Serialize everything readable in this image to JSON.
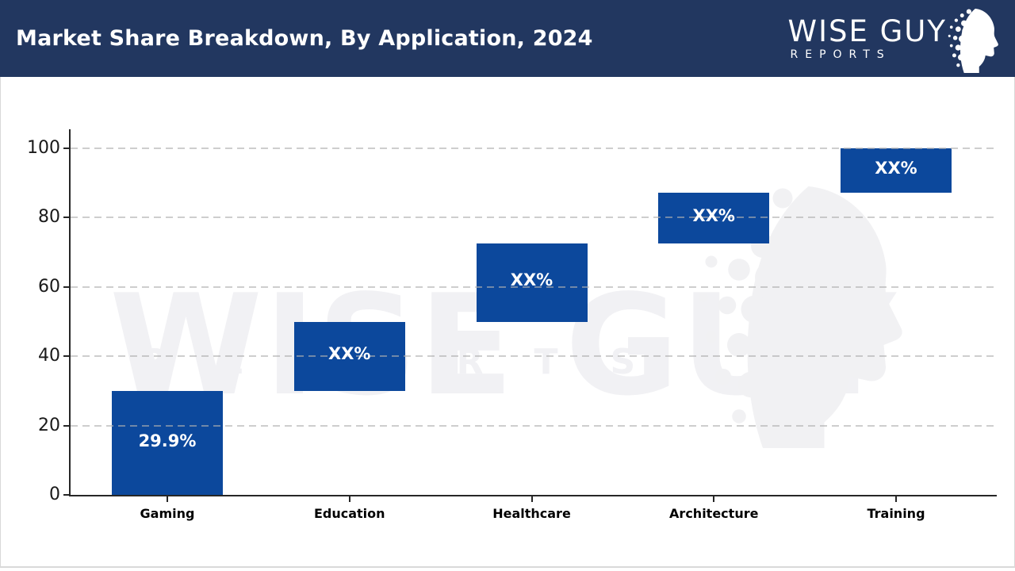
{
  "header": {
    "title": "Market Share Breakdown, By Application, 2024",
    "logo": {
      "line1": "WISE GUY",
      "line2": "REPORTS"
    }
  },
  "watermark": {
    "line1": "WISE GUY",
    "line2": "REPORTS"
  },
  "chart_data": {
    "type": "bar",
    "subtype": "waterfall-floating-bars",
    "title": "Market Share Breakdown, By Application, 2024",
    "categories": [
      "Gaming",
      "Education",
      "Healthcare",
      "Architecture",
      "Training"
    ],
    "segments": [
      {
        "category": "Gaming",
        "start": 0,
        "end": 29.9,
        "label": "29.9%"
      },
      {
        "category": "Education",
        "start": 29.9,
        "end": 49.9,
        "label": "XX%"
      },
      {
        "category": "Healthcare",
        "start": 49.9,
        "end": 72.4,
        "label": "XX%"
      },
      {
        "category": "Architecture",
        "start": 72.4,
        "end": 87,
        "label": "XX%"
      },
      {
        "category": "Training",
        "start": 87,
        "end": 100,
        "label": "XX%"
      }
    ],
    "xlabel": "",
    "ylabel": "",
    "ylim": [
      0,
      100
    ],
    "yticks": [
      0,
      20,
      40,
      60,
      80,
      100
    ],
    "grid": "horizontal-dashed",
    "legend": "none"
  },
  "colors": {
    "header_bg": "#223760",
    "bar_blue": "#0c489c",
    "bar_label": "#ffffff",
    "grid_gray": "#d8d8d8",
    "axis_dark": "#262626",
    "watermark_gray": "#f1f1f4",
    "edge_gray": "#d9d9d9"
  }
}
